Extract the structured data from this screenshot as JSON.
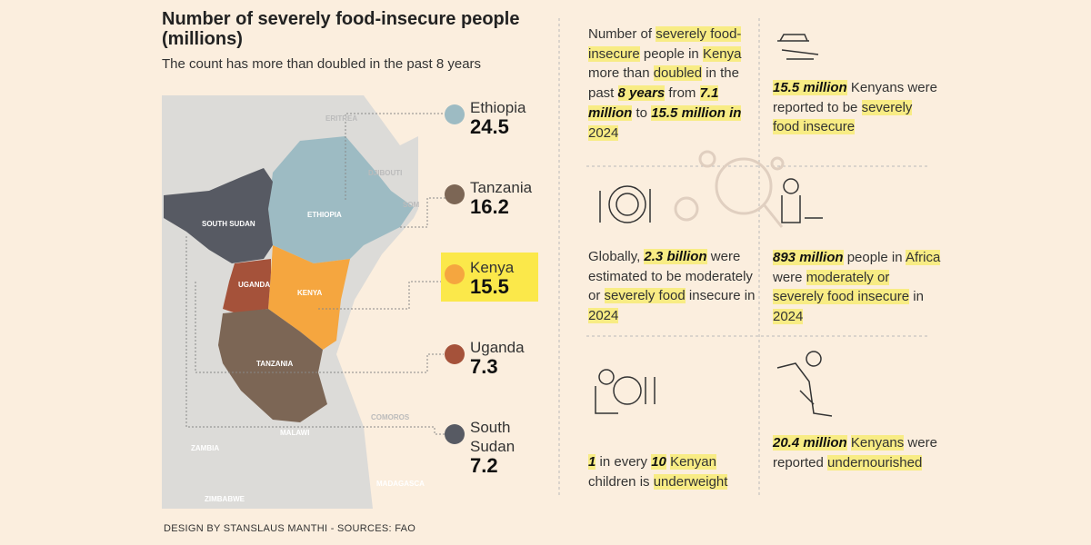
{
  "header": {
    "title": "Number of severely food-insecure people (millions)",
    "subtitle": "The count has more than doubled in the past 8 years"
  },
  "map": {
    "labels": [
      "ERITREA",
      "DJIBOUTI",
      "SOM",
      "ETHIOPIA",
      "SOUTH SUDAN",
      "UGANDA",
      "KENYA",
      "TANZANIA",
      "COMOROS",
      "MALAWI",
      "ZAMBIA",
      "ZIMBABWE",
      "MADAGASCA"
    ]
  },
  "countries": [
    {
      "name": "Ethiopia",
      "value": 24.5,
      "color": "#9dbbc3"
    },
    {
      "name": "Tanzania",
      "value": 16.2,
      "color": "#7c6655"
    },
    {
      "name": "Kenya",
      "value": 15.5,
      "color": "#f5a63f",
      "highlight": true
    },
    {
      "name": "Uganda",
      "value": 7.3,
      "color": "#a5523a"
    },
    {
      "name": "South Sudan",
      "value": 7.2,
      "color": "#575a63"
    }
  ],
  "stats": [
    {
      "segments": [
        {
          "text": "Number of "
        },
        {
          "text": "severely food-insecure",
          "hl": true
        },
        {
          "text": " people in "
        },
        {
          "text": "Kenya",
          "hl": true
        },
        {
          "text": " more than "
        },
        {
          "text": "doubled",
          "hl": true
        },
        {
          "text": " in the past "
        },
        {
          "text": "8 years",
          "hl": true,
          "b": true
        },
        {
          "text": " from "
        },
        {
          "text": "7.1 million",
          "hl": true,
          "b": true
        },
        {
          "text": " to "
        },
        {
          "text": "15.5 million in",
          "hl": true,
          "b": true
        },
        {
          "text": " "
        },
        {
          "text": "2024",
          "hl": true
        }
      ]
    },
    {
      "segments": [
        {
          "text": "15.5 million",
          "hl": true,
          "b": true
        },
        {
          "text": " Kenyans were reported to be "
        },
        {
          "text": "severely food insecure",
          "hl": true
        }
      ]
    },
    {
      "segments": [
        {
          "text": "Globally, "
        },
        {
          "text": "2.3 billion",
          "hl": true,
          "b": true
        },
        {
          "text": " were estimated to be moderately or "
        },
        {
          "text": "severely food",
          "hl": true
        },
        {
          "text": " insecure in "
        },
        {
          "text": "2024",
          "hl": true
        }
      ]
    },
    {
      "segments": [
        {
          "text": "893 million",
          "hl": true,
          "b": true
        },
        {
          "text": " people in "
        },
        {
          "text": "Africa",
          "hl": true
        },
        {
          "text": " were "
        },
        {
          "text": "moderately or severely food insecure",
          "hl": true
        },
        {
          "text": " in "
        },
        {
          "text": "2024",
          "hl": true
        }
      ]
    },
    {
      "segments": [
        {
          "text": "1",
          "hl": true,
          "b": true
        },
        {
          "text": " in every "
        },
        {
          "text": "10",
          "hl": true,
          "b": true
        },
        {
          "text": " "
        },
        {
          "text": "Kenyan",
          "hl": true
        },
        {
          "text": " children is "
        },
        {
          "text": "underweight",
          "hl": true
        }
      ]
    },
    {
      "segments": [
        {
          "text": "20.4 million",
          "hl": true,
          "b": true
        },
        {
          "text": " "
        },
        {
          "text": "Kenyans",
          "hl": true
        },
        {
          "text": " were reported "
        },
        {
          "text": "undernourished",
          "hl": true
        }
      ]
    }
  ],
  "footer": "DESIGN BY STANSLAUS MANTHI  -  SOURCES: FAO"
}
